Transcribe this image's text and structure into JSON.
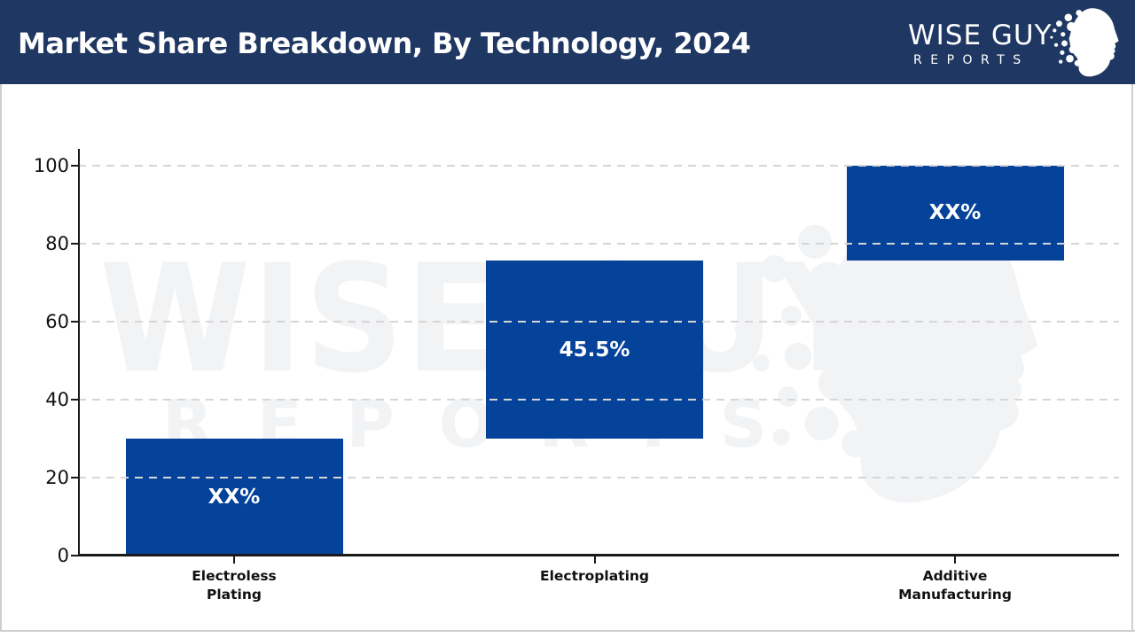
{
  "header": {
    "title": "Market Share Breakdown, By Technology, 2024",
    "logo": {
      "line1": "WISE GUY",
      "line2": "REPORTS"
    }
  },
  "watermark": {
    "line1": "WISE GUY",
    "line2": "REPORTS"
  },
  "chart_data": {
    "type": "bar",
    "subtype": "floating-segment (waterfall-style market share breakdown)",
    "title": "Market Share Breakdown, By Technology, 2024",
    "categories": [
      "Electroless Plating",
      "Electroplating",
      "Additive Manufacturing"
    ],
    "category_label_lines": [
      [
        "Electroless",
        "Plating"
      ],
      [
        "Electroplating"
      ],
      [
        "Additive",
        "Manufacturing"
      ]
    ],
    "segments": [
      {
        "category": "Electroless Plating",
        "base": 0,
        "top": 30,
        "value_estimate": 30,
        "label": "XX%"
      },
      {
        "category": "Electroplating",
        "base": 30,
        "top": 75.5,
        "value_estimate": 45.5,
        "label": "45.5%"
      },
      {
        "category": "Additive Manufacturing",
        "base": 75.5,
        "top": 100,
        "value_estimate": 24.5,
        "label": "XX%"
      }
    ],
    "yticks": [
      0,
      20,
      40,
      60,
      80,
      100
    ],
    "ytick_labels": [
      "0",
      "20",
      "40",
      "60",
      "80",
      "100"
    ],
    "ylim": [
      0,
      104
    ],
    "xlabel": "",
    "ylabel": "",
    "grid": "horizontal dashed gridlines drawn above bars",
    "legend": "none"
  },
  "colors": {
    "header_background": "#1f3763",
    "bar_fill": "#05439b",
    "gridline": "#d6d6d6",
    "axis": "#1a1a1a",
    "watermark": "#f2f3f5",
    "figure_border": "#cfcfcf",
    "background": "#ffffff",
    "title_text": "#ffffff",
    "bar_label_text": "#ffffff"
  }
}
